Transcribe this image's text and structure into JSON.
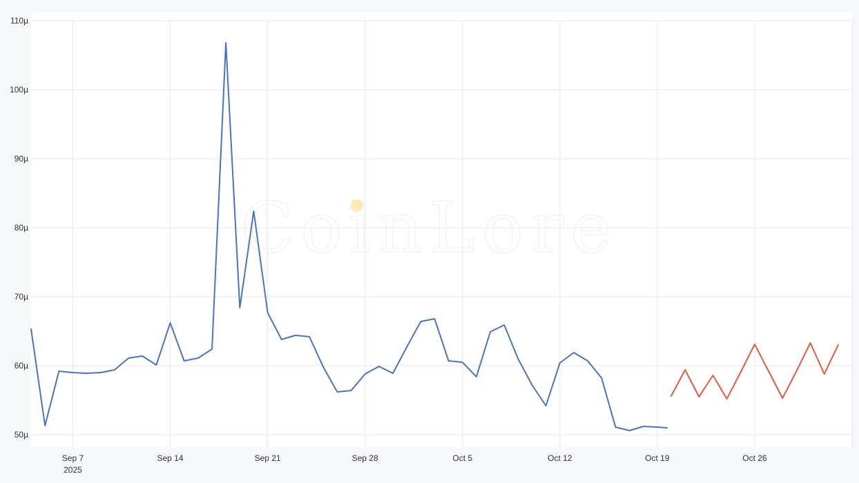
{
  "watermark": {
    "text": "CoinLore"
  },
  "colors": {
    "page_bg": "#f7f8f9",
    "plot_bg": "#ffffff",
    "gridline": "#e8e9eb",
    "axis_label": "#2f2f33",
    "primary_line": "#4673c5",
    "secondary_line": "#e4593f",
    "highlight_dot": "#ffe9a6"
  },
  "chart_data": {
    "type": "line",
    "title": "",
    "xlabel": "",
    "ylabel": "",
    "unit_suffix": "µ",
    "grid": true,
    "ylim": [
      50,
      110
    ],
    "xlim": [
      0,
      59
    ],
    "y_ticks": [
      {
        "value": 110,
        "label": "110µ"
      },
      {
        "value": 100,
        "label": "100µ"
      },
      {
        "value": 90,
        "label": "90µ"
      },
      {
        "value": 80,
        "label": "80µ"
      },
      {
        "value": 70,
        "label": "70µ"
      },
      {
        "value": 60,
        "label": "60µ"
      },
      {
        "value": 50,
        "label": "50µ"
      }
    ],
    "x_ticks": [
      {
        "day": 3,
        "label": "Sep 7",
        "sublabel": "2025"
      },
      {
        "day": 10,
        "label": "Sep 14",
        "sublabel": ""
      },
      {
        "day": 17,
        "label": "Sep 21",
        "sublabel": ""
      },
      {
        "day": 24,
        "label": "Sep 28",
        "sublabel": ""
      },
      {
        "day": 31,
        "label": "Oct 5",
        "sublabel": ""
      },
      {
        "day": 38,
        "label": "Oct 12",
        "sublabel": ""
      },
      {
        "day": 45,
        "label": "Oct 19",
        "sublabel": ""
      },
      {
        "day": 52,
        "label": "Oct 26",
        "sublabel": ""
      }
    ],
    "series": [
      {
        "name": "price-history",
        "color": "#4673c5",
        "points": [
          [
            0,
            65.3
          ],
          [
            1,
            51.3
          ],
          [
            2,
            59.2
          ],
          [
            3,
            59.0
          ],
          [
            4,
            58.9
          ],
          [
            5,
            59.0
          ],
          [
            6,
            59.4
          ],
          [
            7,
            61.1
          ],
          [
            8,
            61.4
          ],
          [
            9,
            60.1
          ],
          [
            10,
            66.2
          ],
          [
            11,
            60.7
          ],
          [
            12,
            61.1
          ],
          [
            13,
            62.4
          ],
          [
            14,
            106.8
          ],
          [
            15,
            68.4
          ],
          [
            16,
            82.4
          ],
          [
            17,
            67.7
          ],
          [
            18,
            63.8
          ],
          [
            19,
            64.4
          ],
          [
            20,
            64.2
          ],
          [
            21,
            59.8
          ],
          [
            22,
            56.2
          ],
          [
            23,
            56.4
          ],
          [
            24,
            58.8
          ],
          [
            25,
            59.9
          ],
          [
            26,
            58.9
          ],
          [
            27,
            62.7
          ],
          [
            28,
            66.4
          ],
          [
            29,
            66.8
          ],
          [
            30,
            60.7
          ],
          [
            31,
            60.5
          ],
          [
            32,
            58.4
          ],
          [
            33,
            64.9
          ],
          [
            34,
            65.9
          ],
          [
            35,
            61.0
          ],
          [
            36,
            57.2
          ],
          [
            37,
            54.2
          ],
          [
            38,
            60.4
          ],
          [
            39,
            61.9
          ],
          [
            40,
            60.7
          ],
          [
            41,
            58.2
          ],
          [
            42,
            51.1
          ],
          [
            43,
            50.6
          ],
          [
            44,
            51.2
          ],
          [
            45,
            51.1
          ],
          [
            45.7,
            51.0
          ]
        ]
      },
      {
        "name": "price-forecast",
        "color": "#e4593f",
        "points": [
          [
            46,
            55.6
          ],
          [
            47,
            59.4
          ],
          [
            48,
            55.5
          ],
          [
            49,
            58.6
          ],
          [
            50,
            55.2
          ],
          [
            51,
            59.1
          ],
          [
            52,
            63.1
          ],
          [
            53,
            59.2
          ],
          [
            54,
            55.3
          ],
          [
            55,
            59.2
          ],
          [
            56,
            63.3
          ],
          [
            57,
            58.8
          ],
          [
            58,
            63.0
          ]
        ]
      }
    ],
    "highlight_dot": {
      "day": 23.4,
      "value": 83.2,
      "radius": 9
    }
  }
}
